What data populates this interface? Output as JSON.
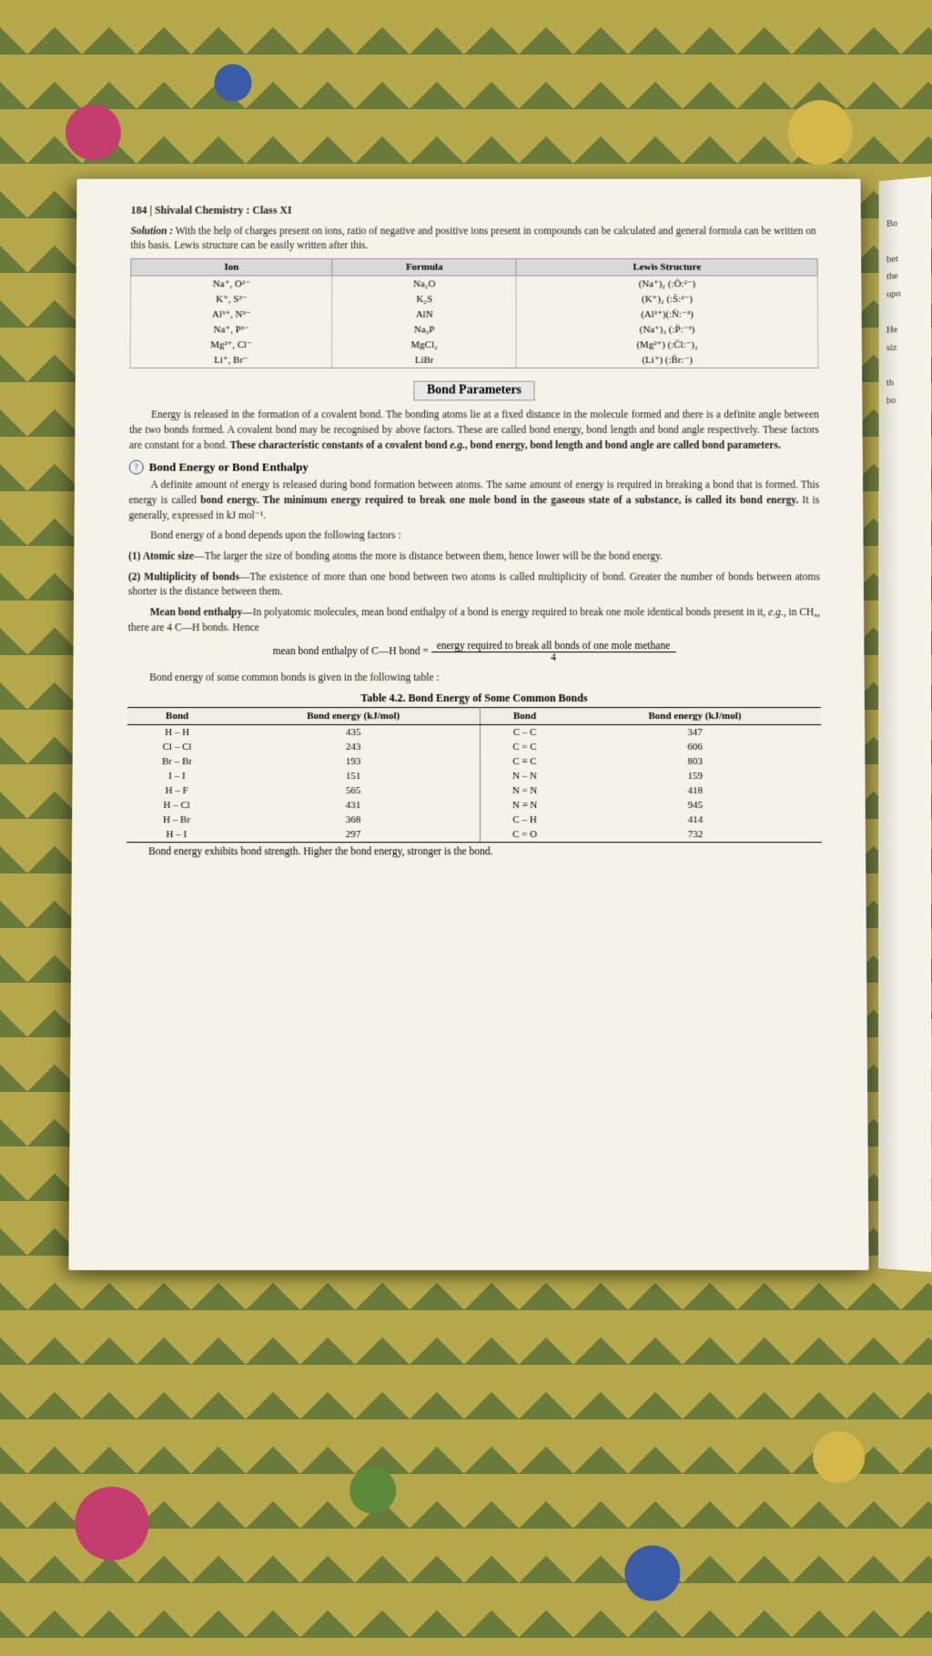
{
  "page": {
    "header": "184 | Shivalal Chemistry : Class XI",
    "solution_label": "Solution :",
    "solution_text": "With the help of charges present on ions, ratio of negative and positive ions present in compounds can be calculated and general formula can be written on this basis. Lewis structure can be easily written after this.",
    "ion_table": {
      "headers": [
        "Ion",
        "Formula",
        "Lewis Structure"
      ],
      "rows": [
        [
          "Na⁺, O²⁻",
          "Na₂O",
          "(Na⁺)₂ (:Ö:²⁻)"
        ],
        [
          "K⁺, S²⁻",
          "K₂S",
          "(K⁺)₂ (:S̈:²⁻)"
        ],
        [
          "Al³⁺, N³⁻",
          "AlN",
          "(Al³⁺)(:N̈:⁻³)"
        ],
        [
          "Na⁺, P³⁻",
          "Na₃P",
          "(Na⁺)₃ (:P̈:⁻³)"
        ],
        [
          "Mg²⁺, Cl⁻",
          "MgCl₂",
          "(Mg²⁺) (:C̈l:⁻)₂"
        ],
        [
          "Li⁺, Br⁻",
          "LiBr",
          "(Li⁺) (:B̈r:⁻)"
        ]
      ]
    },
    "section1_title": "Bond Parameters",
    "section1_body": "Energy is released in the formation of a covalent bond. The bonding atoms lie at a fixed distance in the molecule formed and there is a definite angle between the two bonds formed. A covalent bond may be recognised by above factors. These are called bond energy, bond length and bond angle respectively. These factors are constant for a bond. <b>These characteristic constants of a covalent bond <i>e.g.</i>, bond energy, bond length and bond angle are called bond parameters.</b>",
    "sub1_num": "?",
    "sub1_title": "Bond Energy or Bond Enthalpy",
    "sub1_p1": "A definite amount of energy is released during bond formation between atoms. The same amount of energy is required in breaking a bond that is formed. This energy is called <b>bond energy. The minimum energy required to break one mole bond in the gaseous state of a substance, is called its bond energy.</b> It is generally, expressed in kJ mol⁻¹.",
    "sub1_p2": "Bond energy of a bond depends upon the following factors :",
    "sub1_p3": "<b>(1) Atomic size</b>—The larger the size of bonding atoms the more is distance between them, hence lower will be the bond energy.",
    "sub1_p4": "<b>(2) Multiplicity of bonds</b>—The existence of more than one bond between two atoms is called multiplicity of bond. Greater the number of bonds between atoms shorter is the distance between them.",
    "sub1_p5": "<b>Mean bond enthalpy</b>—In polyatomic molecules, mean bond enthalpy of a bond is energy required to break one mole identical bonds present in it, <i>e.g.</i>, in CH₄, there are 4 C—H bonds. Hence",
    "formula_left": "mean bond enthalpy of C—H bond =",
    "formula_num": "energy required to break all bonds of one mole methane",
    "formula_den": "4",
    "sub1_p6": "Bond energy of some common bonds is given in the following table :",
    "table_caption": "Table 4.2. Bond Energy of Some Common Bonds",
    "bond_table": {
      "headers": [
        "Bond",
        "Bond energy (kJ/mol)",
        "Bond",
        "Bond energy (kJ/mol)"
      ],
      "rows": [
        [
          "H – H",
          "435",
          "C – C",
          "347"
        ],
        [
          "Cl – Cl",
          "243",
          "C = C",
          "606"
        ],
        [
          "Br – Br",
          "193",
          "C ≡ C",
          "803"
        ],
        [
          "I – I",
          "151",
          "N – N",
          "159"
        ],
        [
          "H – F",
          "565",
          "N = N",
          "418"
        ],
        [
          "H – Cl",
          "431",
          "N ≡ N",
          "945"
        ],
        [
          "H – Br",
          "368",
          "C – H",
          "414"
        ],
        [
          "H – I",
          "297",
          "C = O",
          "732"
        ]
      ]
    },
    "footer_note": "Bond energy exhibits bond strength. Higher the bond energy, stronger is the bond.",
    "right_edge_fragments": "Bo\n\nbet\nthe\nupo\n\nHe\nsiz\n\nth\nbo"
  },
  "style": {
    "page_bg": "#f5f2ea",
    "text_color": "#1a1a1a",
    "table_header_bg": "#d8d8d8",
    "border_color": "#999999",
    "body_fontsize": 11.5,
    "heading_fontsize": 14
  }
}
